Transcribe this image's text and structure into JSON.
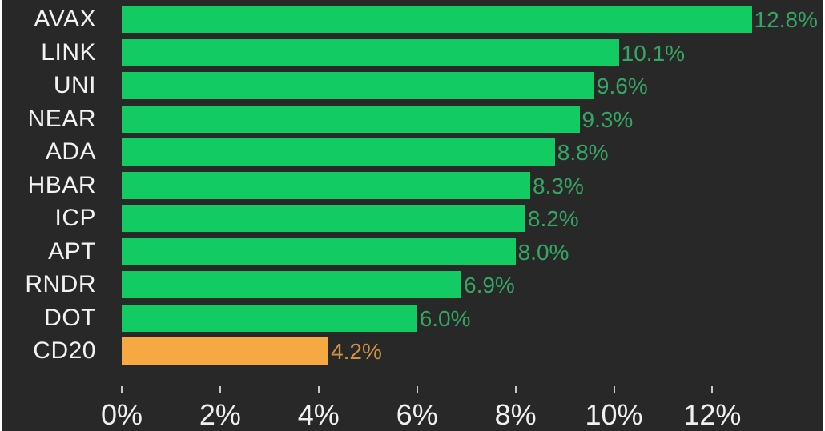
{
  "chart_data": {
    "type": "bar",
    "orientation": "horizontal",
    "title": "",
    "categories": [
      "AVAX",
      "LINK",
      "UNI",
      "NEAR",
      "ADA",
      "HBAR",
      "ICP",
      "APT",
      "RNDR",
      "DOT",
      "CD20"
    ],
    "values": [
      12.8,
      10.1,
      9.6,
      9.3,
      8.8,
      8.3,
      8.2,
      8.0,
      6.9,
      6.0,
      4.2
    ],
    "value_labels": [
      "12.8%",
      "10.1%",
      "9.6%",
      "9.3%",
      "8.8%",
      "8.3%",
      "8.2%",
      "8.0%",
      "6.9%",
      "6.0%",
      "4.2%"
    ],
    "highlight_category": "CD20",
    "xlabel": "",
    "ylabel": "",
    "xlim": [
      0,
      13.2
    ],
    "grid": false,
    "legend": null,
    "x_axis": {
      "tick_values": [
        0,
        2,
        4,
        6,
        8,
        10,
        12
      ],
      "tick_labels": [
        "0%",
        "2%",
        "4%",
        "6%",
        "8%",
        "10%",
        "12%"
      ]
    },
    "colors": {
      "background": "#282828",
      "bar_green": "#12cb63",
      "bar_orange": "#f6a843",
      "value_text_green": "#35a763",
      "value_text_orange": "#cf9245",
      "category_text": "#f2f2f2",
      "axis_text": "#f0f0f0",
      "tick_mark": "#c8c8c8"
    }
  }
}
